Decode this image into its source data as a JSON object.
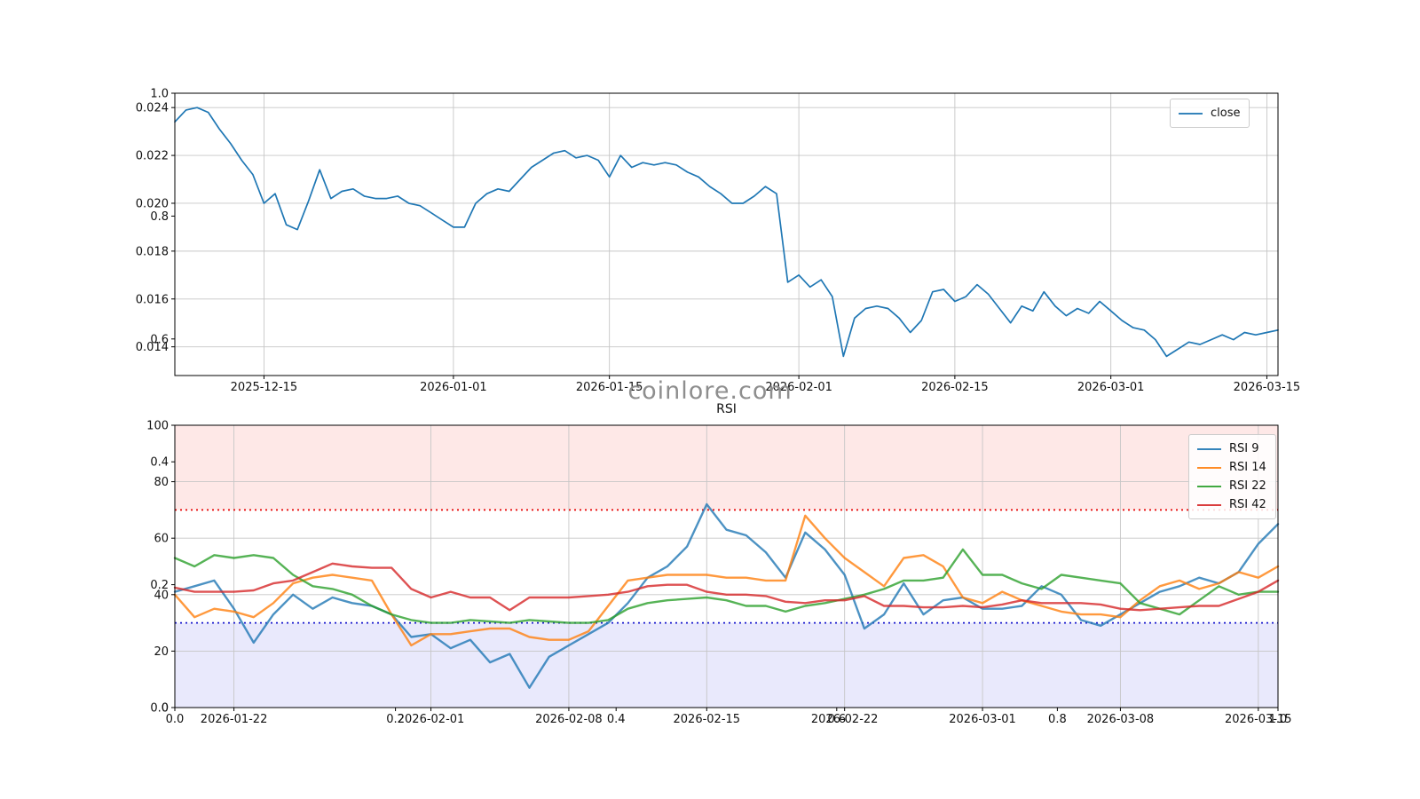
{
  "watermark": "coinlore.com",
  "colors": {
    "close_line": "#1f77b4",
    "rsi9": "#1f77b4",
    "rsi14": "#ff7f0e",
    "rsi22": "#2ca02c",
    "rsi42": "#d62728",
    "grid": "#c6c6c6",
    "spine": "#000000",
    "tick_text": "#111111",
    "overbought_line": "#e60000",
    "oversold_line": "#1414cc",
    "overbought_band": "rgba(244,67,54,0.12)",
    "oversold_band": "rgba(106,106,235,0.15)",
    "watermark": "#8e8e8e"
  },
  "ghost_axis": {
    "left_labels": [
      "1.0",
      "0.8",
      "0.6",
      "0.4",
      "0.2",
      "0.0"
    ],
    "bottom_labels": [
      "0.0",
      "0.2",
      "0.4",
      "0.6",
      "0.8",
      "1.0"
    ]
  },
  "chart_data": [
    {
      "type": "line",
      "name": "price",
      "title": "",
      "legend_position": "upper right",
      "legend": [
        {
          "label": "close",
          "color": "#1f77b4"
        }
      ],
      "x_start": "2025-12-07",
      "x_end": "2026-03-16",
      "ylim": [
        0.0128,
        0.0246
      ],
      "yticks": [
        0.014,
        0.016,
        0.018,
        0.02,
        0.022,
        0.024
      ],
      "grid": true,
      "xticks": [
        {
          "label": "2025-12-15",
          "index": 8
        },
        {
          "label": "2026-01-01",
          "index": 25
        },
        {
          "label": "2026-01-15",
          "index": 39
        },
        {
          "label": "2026-02-01",
          "index": 56
        },
        {
          "label": "2026-02-15",
          "index": 70
        },
        {
          "label": "2026-03-01",
          "index": 84
        },
        {
          "label": "2026-03-15",
          "index": 98
        }
      ],
      "series": [
        {
          "name": "close",
          "color": "#1f77b4",
          "width": 1.7,
          "opacity": 1,
          "values": [
            0.0234,
            0.0239,
            0.024,
            0.0238,
            0.0231,
            0.0225,
            0.0218,
            0.0212,
            0.02,
            0.0204,
            0.0191,
            0.0189,
            0.0201,
            0.0214,
            0.0202,
            0.0205,
            0.0206,
            0.0203,
            0.0202,
            0.0202,
            0.0203,
            0.02,
            0.0199,
            0.0196,
            0.0193,
            0.019,
            0.019,
            0.02,
            0.0204,
            0.0206,
            0.0205,
            0.021,
            0.0215,
            0.0218,
            0.0221,
            0.0222,
            0.0219,
            0.022,
            0.0218,
            0.0211,
            0.022,
            0.0215,
            0.0217,
            0.0216,
            0.0217,
            0.0216,
            0.0213,
            0.0211,
            0.0207,
            0.0204,
            0.02,
            0.02,
            0.0203,
            0.0207,
            0.0204,
            0.0167,
            0.017,
            0.0165,
            0.0168,
            0.0161,
            0.0136,
            0.0152,
            0.0156,
            0.0157,
            0.0156,
            0.0152,
            0.0146,
            0.0151,
            0.0163,
            0.0164,
            0.0159,
            0.0161,
            0.0166,
            0.0162,
            0.0156,
            0.015,
            0.0157,
            0.0155,
            0.0163,
            0.0157,
            0.0153,
            0.0156,
            0.0154,
            0.0159,
            0.0155,
            0.0151,
            0.0148,
            0.0147,
            0.0143,
            0.0136,
            0.0139,
            0.0142,
            0.0141,
            0.0143,
            0.0145,
            0.0143,
            0.0146,
            0.0145,
            0.0146,
            0.0147
          ]
        }
      ]
    },
    {
      "type": "line",
      "name": "rsi",
      "title": "RSI",
      "legend_position": "upper right",
      "legend": [
        {
          "label": "RSI 9",
          "color": "#1f77b4"
        },
        {
          "label": "RSI 14",
          "color": "#ff7f0e"
        },
        {
          "label": "RSI 22",
          "color": "#2ca02c"
        },
        {
          "label": "RSI 42",
          "color": "#d62728"
        }
      ],
      "x_start": "2026-01-19",
      "x_end": "2026-03-16",
      "ylim": [
        0,
        100
      ],
      "yticks": [
        0,
        20,
        40,
        60,
        80,
        100
      ],
      "grid": true,
      "overbought_level": 70,
      "oversold_level": 30,
      "xticks": [
        {
          "label": "2026-01-22",
          "index": 3
        },
        {
          "label": "2026-02-01",
          "index": 13
        },
        {
          "label": "2026-02-08",
          "index": 20
        },
        {
          "label": "2026-02-15",
          "index": 27
        },
        {
          "label": "2026-02-22",
          "index": 34
        },
        {
          "label": "2026-03-01",
          "index": 41
        },
        {
          "label": "2026-03-08",
          "index": 48
        },
        {
          "label": "2026-03-15",
          "index": 55
        }
      ],
      "series": [
        {
          "name": "RSI 9",
          "color": "#1f77b4",
          "width": 2.4,
          "opacity": 0.8,
          "values": [
            41,
            43,
            45,
            35,
            23,
            33,
            40,
            35,
            39,
            37,
            36,
            33,
            25,
            26,
            21,
            24,
            16,
            19,
            7,
            18,
            22,
            26,
            30,
            37,
            46,
            50,
            57,
            72,
            63,
            61,
            55,
            46,
            62,
            56,
            47,
            28,
            33,
            44,
            33,
            38,
            39,
            35,
            35,
            36,
            43,
            40,
            31,
            29,
            33,
            37,
            41,
            43,
            46,
            44,
            48,
            58,
            65
          ]
        },
        {
          "name": "RSI 14",
          "color": "#ff7f0e",
          "width": 2.4,
          "opacity": 0.8,
          "values": [
            40,
            32,
            35,
            34,
            32,
            37,
            44,
            46,
            47,
            46,
            45,
            33,
            22,
            26,
            26,
            27,
            28,
            28,
            25,
            24,
            24,
            27,
            36,
            45,
            46,
            47,
            47,
            47,
            46,
            46,
            45,
            45,
            68,
            60,
            53,
            48,
            43,
            53,
            54,
            50,
            39,
            37,
            41,
            38,
            36,
            34,
            33,
            33,
            32,
            38,
            43,
            45,
            42,
            44,
            48,
            46,
            50
          ]
        },
        {
          "name": "RSI 22",
          "color": "#2ca02c",
          "width": 2.4,
          "opacity": 0.8,
          "values": [
            53,
            50,
            54,
            53,
            54,
            53,
            47,
            43,
            42,
            40,
            36,
            33,
            31,
            30,
            30,
            31,
            30.5,
            30,
            31,
            30.5,
            30,
            30,
            31,
            35,
            37,
            38,
            38.5,
            39,
            38,
            36,
            36,
            34,
            36,
            37,
            38.5,
            40,
            42,
            45,
            45,
            46,
            56,
            47,
            47,
            44,
            42,
            47,
            46,
            45,
            44,
            37,
            35,
            33,
            38,
            43,
            40,
            41,
            41
          ]
        },
        {
          "name": "RSI 42",
          "color": "#d62728",
          "width": 2.4,
          "opacity": 0.8,
          "values": [
            42.5,
            41,
            41,
            41,
            41.5,
            44,
            45,
            48,
            51,
            50,
            49.5,
            49.5,
            42,
            39,
            41,
            39,
            39,
            34.5,
            39,
            39,
            39,
            39.5,
            40,
            41,
            43,
            43.5,
            43.5,
            41,
            40,
            40,
            39.5,
            37.5,
            37,
            38,
            38,
            39.5,
            36,
            36,
            35.5,
            35.5,
            36,
            35.5,
            36.5,
            38,
            37,
            37,
            37,
            36.5,
            35,
            34.5,
            35,
            35.5,
            36,
            36,
            38.5,
            41,
            45
          ]
        }
      ]
    }
  ]
}
